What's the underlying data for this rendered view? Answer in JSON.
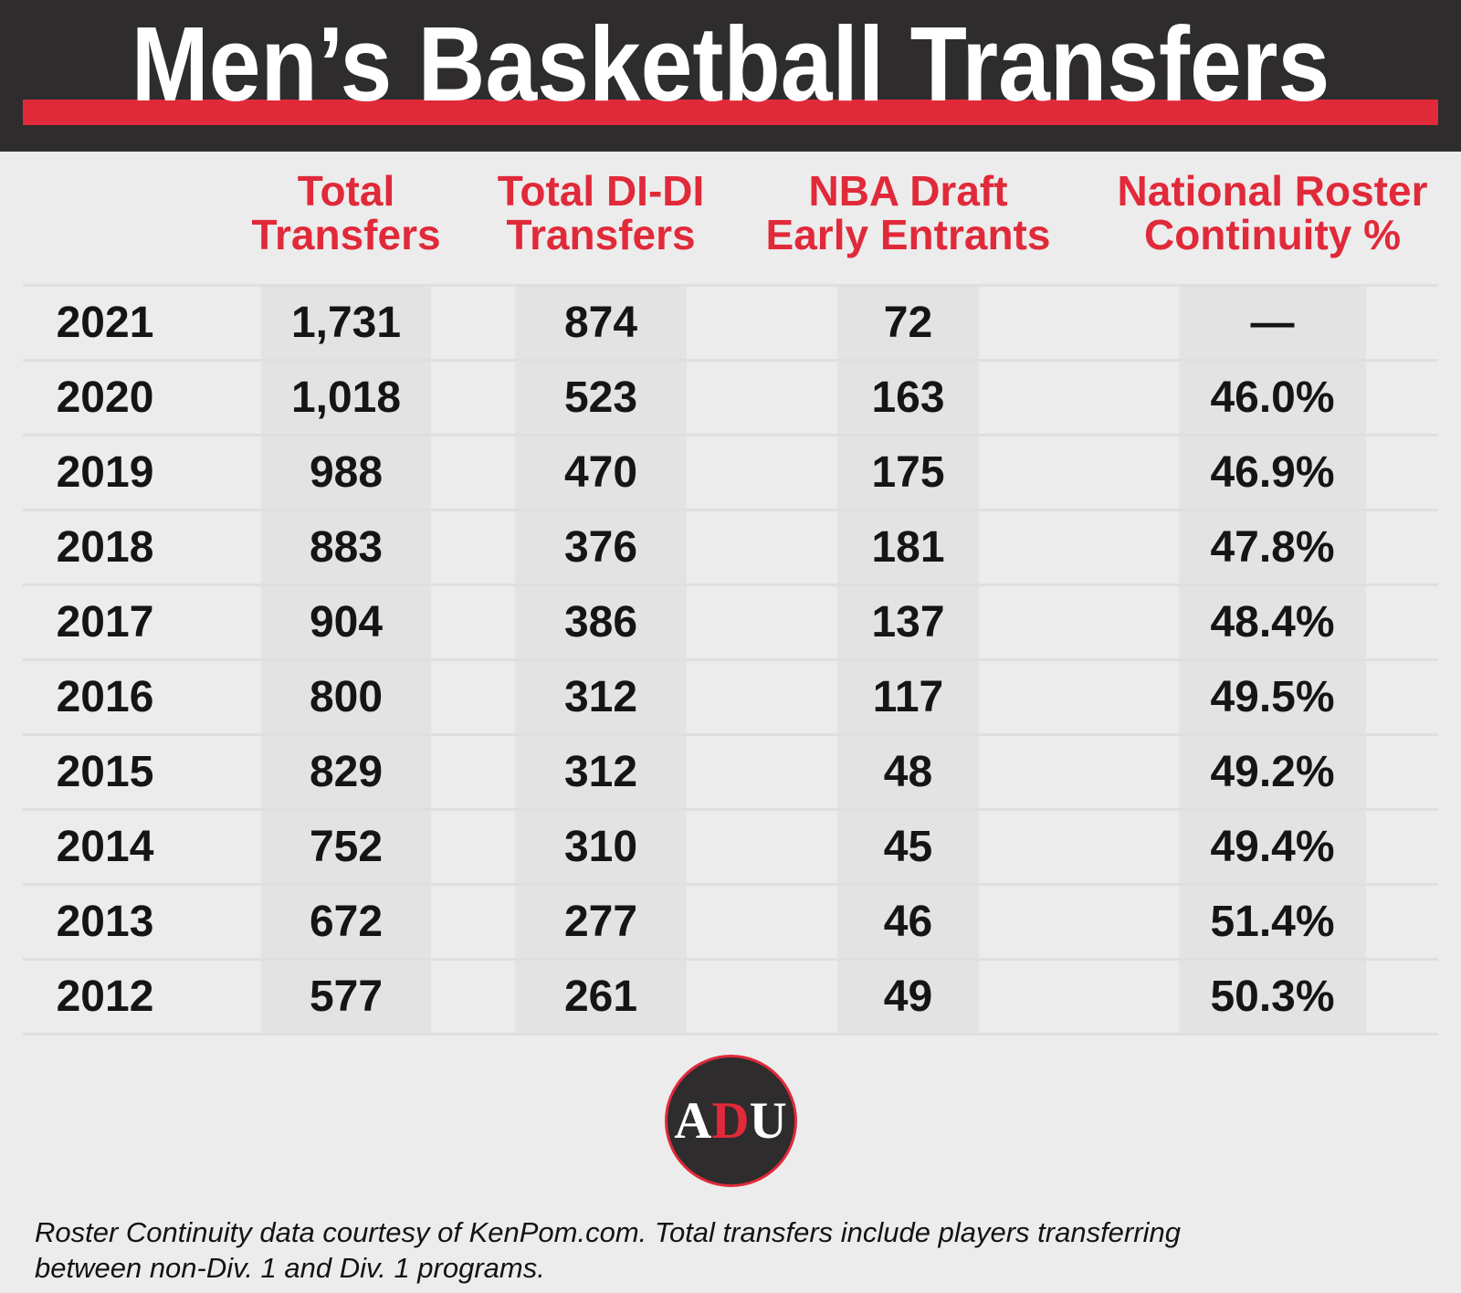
{
  "title": "Men’s Basketball Transfers",
  "colors": {
    "accent_red": "#e02a3a",
    "header_dark": "#2e2c2c",
    "background": "#ececec",
    "column_band_gray": "#e3e3e3",
    "row_line_gray": "#dfdfdf",
    "text_black": "#151515",
    "title_white": "#ffffff"
  },
  "table": {
    "columns": [
      {
        "line1": "Total",
        "line2": "Transfers"
      },
      {
        "line1": "Total DI-DI",
        "line2": "Transfers"
      },
      {
        "line1": "NBA Draft",
        "line2": "Early Entrants"
      },
      {
        "line1": "National Roster",
        "line2": "Continuity %"
      }
    ],
    "rows": [
      {
        "year": "2021",
        "total": "1,731",
        "didi": "874",
        "nba": "72",
        "continuity": "—"
      },
      {
        "year": "2020",
        "total": "1,018",
        "didi": "523",
        "nba": "163",
        "continuity": "46.0%"
      },
      {
        "year": "2019",
        "total": "988",
        "didi": "470",
        "nba": "175",
        "continuity": "46.9%"
      },
      {
        "year": "2018",
        "total": "883",
        "didi": "376",
        "nba": "181",
        "continuity": "47.8%"
      },
      {
        "year": "2017",
        "total": "904",
        "didi": "386",
        "nba": "137",
        "continuity": "48.4%"
      },
      {
        "year": "2016",
        "total": "800",
        "didi": "312",
        "nba": "117",
        "continuity": "49.5%"
      },
      {
        "year": "2015",
        "total": "829",
        "didi": "312",
        "nba": "48",
        "continuity": "49.2%"
      },
      {
        "year": "2014",
        "total": "752",
        "didi": "310",
        "nba": "45",
        "continuity": "49.4%"
      },
      {
        "year": "2013",
        "total": "672",
        "didi": "277",
        "nba": "46",
        "continuity": "51.4%"
      },
      {
        "year": "2012",
        "total": "577",
        "didi": "261",
        "nba": "49",
        "continuity": "50.3%"
      }
    ]
  },
  "logo": {
    "letter_a": "A",
    "letter_d": "D",
    "letter_u": "U"
  },
  "footnote": {
    "line1": "Roster Continuity data courtesy of KenPom.com. Total transfers include players transferring",
    "line2": "between non-Div. 1 and Div. 1 programs."
  },
  "chart_data": {
    "type": "table",
    "title": "Men’s Basketball Transfers",
    "categories": [
      "2021",
      "2020",
      "2019",
      "2018",
      "2017",
      "2016",
      "2015",
      "2014",
      "2013",
      "2012"
    ],
    "series": [
      {
        "name": "Total Transfers",
        "values": [
          1731,
          1018,
          988,
          883,
          904,
          800,
          829,
          752,
          672,
          577
        ]
      },
      {
        "name": "Total DI-DI Transfers",
        "values": [
          874,
          523,
          470,
          376,
          386,
          312,
          312,
          310,
          277,
          261
        ]
      },
      {
        "name": "NBA Draft Early Entrants",
        "values": [
          72,
          163,
          175,
          181,
          137,
          117,
          48,
          45,
          46,
          49
        ]
      },
      {
        "name": "National Roster Continuity %",
        "values": [
          null,
          46.0,
          46.9,
          47.8,
          48.4,
          49.5,
          49.2,
          49.4,
          51.4,
          50.3
        ]
      }
    ],
    "source_note": "Roster Continuity data courtesy of KenPom.com. Total transfers include players transferring between non-Div. 1 and Div. 1 programs."
  }
}
